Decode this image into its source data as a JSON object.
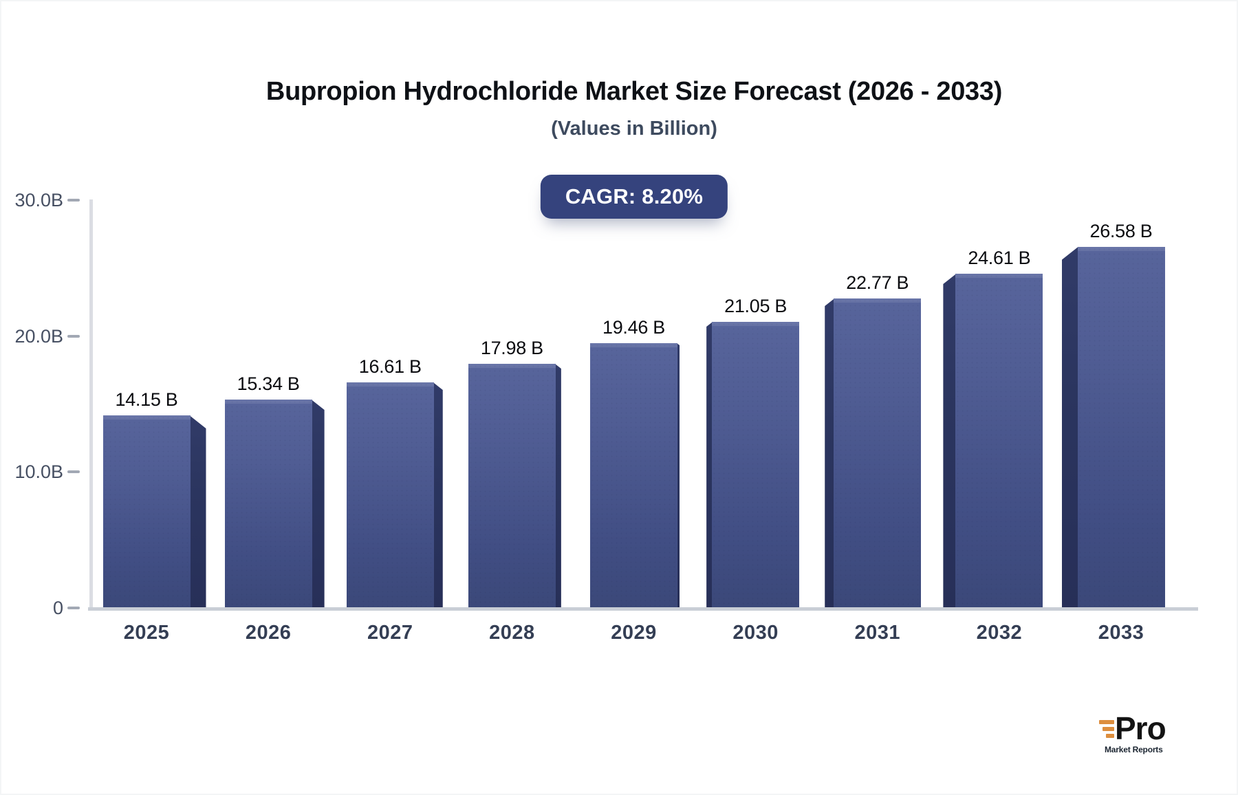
{
  "header": {
    "title": "Bupropion Hydrochloride Market Size Forecast (2026 - 2033)",
    "subtitle": "(Values in Billion)",
    "cagr_badge": "CAGR: 8.20%"
  },
  "chart_data": {
    "type": "bar",
    "title": "Bupropion Hydrochloride Market Size Forecast (2026 - 2033)",
    "subtitle": "(Values in Billion)",
    "cagr": "8.20%",
    "categories": [
      "2025",
      "2026",
      "2027",
      "2028",
      "2029",
      "2030",
      "2031",
      "2032",
      "2033"
    ],
    "values": [
      14.15,
      15.34,
      16.61,
      17.98,
      19.46,
      21.05,
      22.77,
      24.61,
      26.58
    ],
    "bar_labels": [
      "14.15 B",
      "15.34 B",
      "16.61 B",
      "17.98 B",
      "19.46 B",
      "21.05 B",
      "22.77 B",
      "24.61 B",
      "26.58 B"
    ],
    "xlabel": "",
    "ylabel": "",
    "ylim": [
      0,
      30
    ],
    "yticks": [
      {
        "value": 30,
        "label": "30.0B"
      },
      {
        "value": 20,
        "label": "20.0B"
      },
      {
        "value": 10,
        "label": "10.0B"
      },
      {
        "value": 0,
        "label": "0"
      }
    ],
    "grid": false,
    "legend": false,
    "style_3d": true,
    "colors": {
      "bar_face_top": "#57649b",
      "bar_face_bottom": "#3b4879",
      "bar_side": "#2b355f",
      "badge_background": "#35437d",
      "badge_text": "#ffffff",
      "axis_line": "#c9ced6",
      "tick_text": "#475063",
      "category_text": "#343e54",
      "value_text": "#0b0c10"
    }
  },
  "branding": {
    "logo_main": "Pro",
    "logo_sub": "Market Reports",
    "logo_accent_color": "#dd8e3e"
  }
}
